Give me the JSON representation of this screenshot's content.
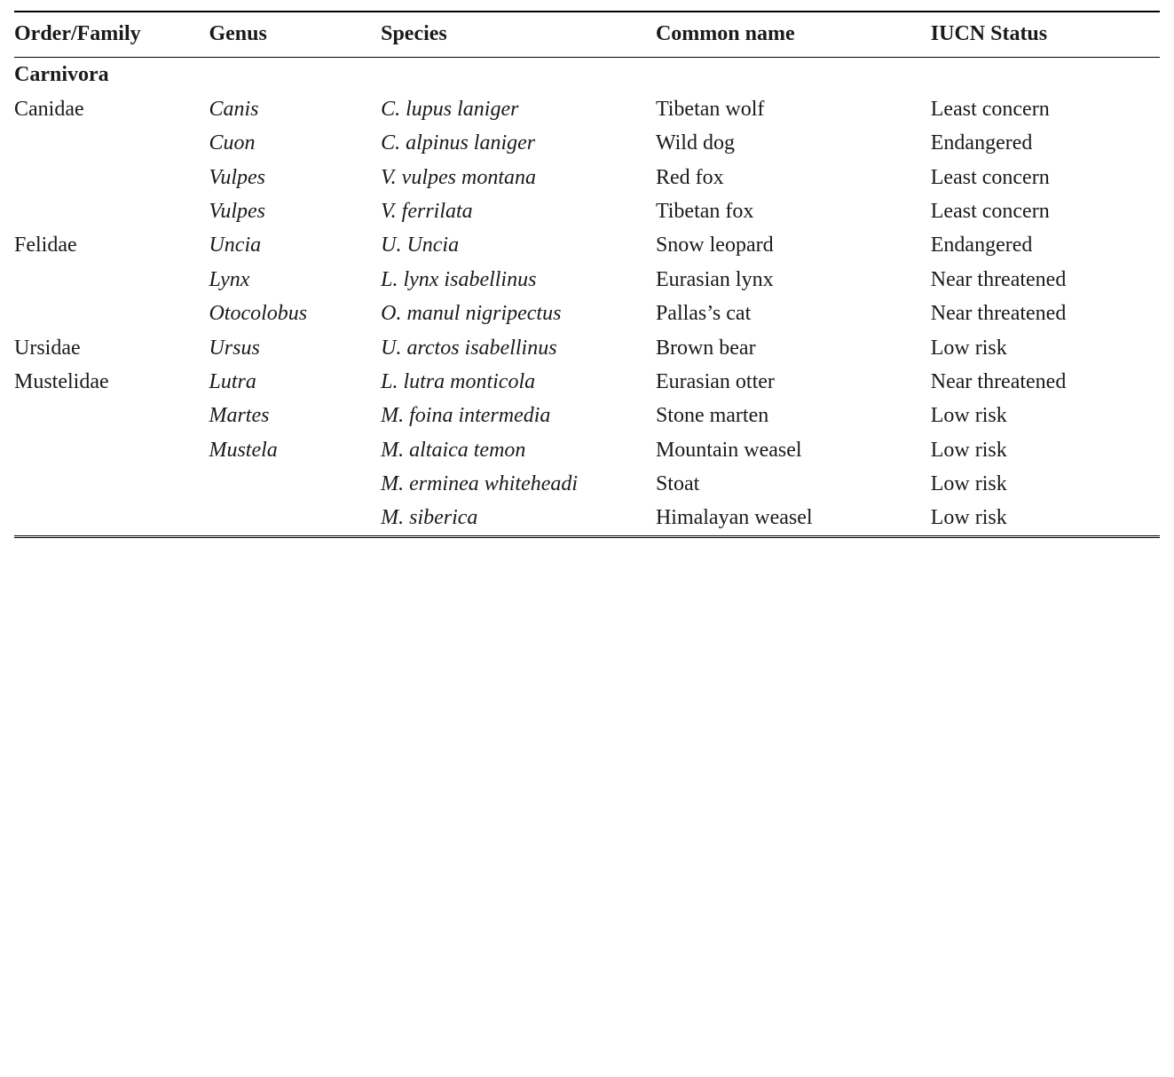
{
  "table": {
    "columns": [
      "Order/Family",
      "Genus",
      "Species",
      "Common name",
      "IUCN Status"
    ],
    "order_header": "Carnivora",
    "rows": [
      {
        "family": "Canidae",
        "genus": "Canis",
        "species": "C. lupus laniger",
        "common": "Tibetan wolf",
        "status": "Least concern"
      },
      {
        "family": "",
        "genus": "Cuon",
        "species": "C. alpinus laniger",
        "common": "Wild dog",
        "status": "Endangered"
      },
      {
        "family": "",
        "genus": "Vulpes",
        "species": "V. vulpes montana",
        "common": "Red fox",
        "status": "Least concern"
      },
      {
        "family": "",
        "genus": "Vulpes",
        "species": "V. ferrilata",
        "common": "Tibetan fox",
        "status": "Least concern"
      },
      {
        "family": "Felidae",
        "genus": "Uncia",
        "species": "U. Uncia",
        "common": "Snow leopard",
        "status": "Endangered"
      },
      {
        "family": "",
        "genus": "Lynx",
        "species": "L. lynx isabellinus",
        "common": "Eurasian lynx",
        "status": "Near threatened"
      },
      {
        "family": "",
        "genus": "Otocolobus",
        "species": "O. manul nigripectus",
        "common": "Pallas’s cat",
        "status": "Near threatened"
      },
      {
        "family": "Ursidae",
        "genus": "Ursus",
        "species": "U. arctos isabellinus",
        "common": "Brown bear",
        "status": "Low risk"
      },
      {
        "family": "Mustelidae",
        "genus": "Lutra",
        "species": "L. lutra monticola",
        "common": "Eurasian otter",
        "status": "Near threatened"
      },
      {
        "family": "",
        "genus": "Martes",
        "species": "M. foina intermedia",
        "common": "Stone marten",
        "status": "Low risk"
      },
      {
        "family": "",
        "genus": "Mustela",
        "species": "M. altaica temon",
        "common": "Mountain weasel",
        "status": "Low risk"
      },
      {
        "family": "",
        "genus": "",
        "species": "M. erminea whiteheadi",
        "common": "Stoat",
        "status": "Low risk"
      },
      {
        "family": "",
        "genus": "",
        "species": "M. siberica",
        "common": "Himalayan weasel",
        "status": "Low risk"
      }
    ]
  },
  "style": {
    "text_color": "#1a1a1a",
    "background_color": "#ffffff",
    "rule_color": "#000000",
    "font_family": "Georgia, 'Times New Roman', serif",
    "header_fontsize_pt": 18,
    "body_fontsize_pt": 18,
    "col_widths_pct": [
      17,
      15,
      24,
      24,
      20
    ]
  }
}
